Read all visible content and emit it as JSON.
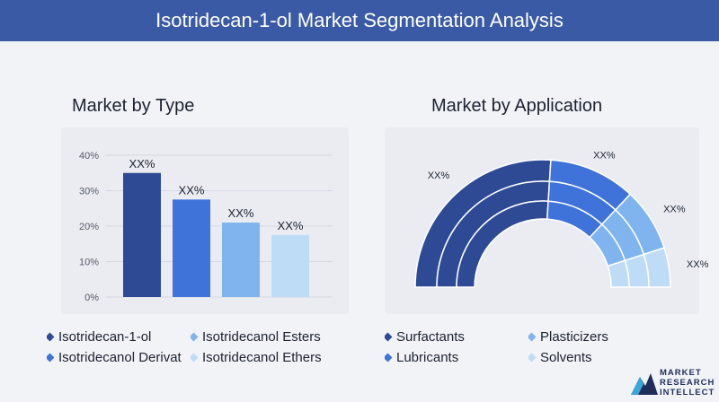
{
  "header": {
    "title": "Isotridecan-1-ol Market Segmentation Analysis"
  },
  "sections": {
    "left_title": "Market by Type",
    "right_title": "Market by Application"
  },
  "colors": {
    "header_bg": "#3b5aa6",
    "dark_blue": "#2e4a94",
    "medium_blue": "#3f73d9",
    "light_blue": "#7fb4ef",
    "pale_blue": "#bfdcf7"
  },
  "chart_data": [
    {
      "type": "bar",
      "categories": [
        "Isotridecan-1-ol",
        "Isotridecanol Derivat",
        "Isotridecanol Esters",
        "Isotridecanol Ethers"
      ],
      "values": [
        35,
        27.5,
        21,
        17.5
      ],
      "data_labels": [
        "XX%",
        "XX%",
        "XX%",
        "XX%"
      ],
      "yticks": [
        "0%",
        "10%",
        "20%",
        "30%",
        "40%"
      ],
      "ylim": [
        0,
        40
      ],
      "grid": true,
      "colors": [
        "#2e4a94",
        "#3f73d9",
        "#7fb4ef",
        "#bfdcf7"
      ],
      "title": "",
      "xlabel": "",
      "ylabel": ""
    },
    {
      "type": "pie",
      "style": "semicircle-ring",
      "categories": [
        "Surfactants",
        "Lubricants",
        "Plasticizers",
        "Solvents"
      ],
      "values": [
        52,
        22,
        16,
        10
      ],
      "data_labels": [
        "XX%",
        "XX%",
        "XX%",
        "XX%"
      ],
      "colors": [
        "#2e4a94",
        "#3f73d9",
        "#7fb4ef",
        "#bfdcf7"
      ]
    }
  ],
  "legends": {
    "type_left": [
      "Isotridecan-1-ol",
      "Isotridecanol Derivat"
    ],
    "type_right": [
      "Isotridecanol Esters",
      "Isotridecanol Ethers"
    ],
    "app_left": [
      "Surfactants",
      "Lubricants"
    ],
    "app_right": [
      "Plasticizers",
      "Solvents"
    ]
  },
  "logo": {
    "line1": "MARKET",
    "line2": "RESEARCH",
    "line3": "INTELLECT"
  }
}
